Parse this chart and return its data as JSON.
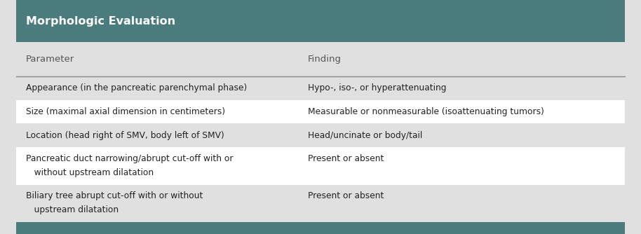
{
  "title": "Morphologic Evaluation",
  "header_bg": "#4a7c7e",
  "title_color": "#ffffff",
  "table_bg": "#e0e0e0",
  "row_bg_light": "#e0e0e0",
  "row_bg_white": "#ffffff",
  "header_row_color": "#555555",
  "col1_header": "Parameter",
  "col2_header": "Finding",
  "col_split": 0.47,
  "bottom_bar_color": "#4a7c7e",
  "line_color": "#888888",
  "text_color": "#222222",
  "rows": [
    {
      "bg": "#e0e0e0",
      "param_lines": [
        "Appearance (in the pancreatic parenchymal phase)"
      ],
      "finding_lines": [
        "Hypo-, iso-, or hyperattenuating"
      ]
    },
    {
      "bg": "#ffffff",
      "param_lines": [
        "Size (maximal axial dimension in centimeters)"
      ],
      "finding_lines": [
        "Measurable or nonmeasurable (isoattenuating tumors)"
      ]
    },
    {
      "bg": "#e0e0e0",
      "param_lines": [
        "Location (head right of SMV, body left of SMV)"
      ],
      "finding_lines": [
        "Head/uncinate or body/tail"
      ]
    },
    {
      "bg": "#ffffff",
      "param_lines": [
        "Pancreatic duct narrowing/abrupt cut-off with or",
        "   without upstream dilatation"
      ],
      "finding_lines": [
        "Present or absent"
      ]
    },
    {
      "bg": "#e0e0e0",
      "param_lines": [
        "Biliary tree abrupt cut-off with or without",
        "   upstream dilatation"
      ],
      "finding_lines": [
        "Present or absent"
      ]
    }
  ]
}
